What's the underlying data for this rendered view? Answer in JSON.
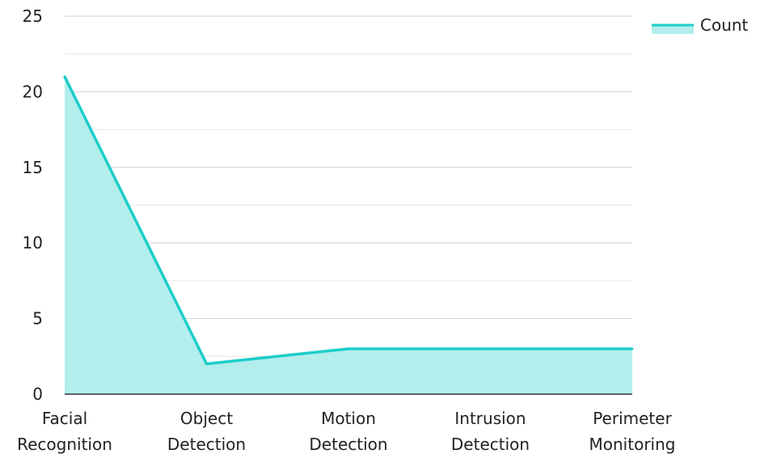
{
  "chart_data": {
    "type": "area",
    "categories": [
      [
        "Facial",
        "Recognition"
      ],
      [
        "Object",
        "Detection"
      ],
      [
        "Motion",
        "Detection"
      ],
      [
        "Intrusion",
        "Detection"
      ],
      [
        "Perimeter",
        "Monitoring"
      ]
    ],
    "series": [
      {
        "name": "Count",
        "values": [
          21,
          2,
          3,
          3,
          3
        ]
      }
    ],
    "ylim": [
      0,
      25
    ],
    "yticks": [
      0,
      5,
      10,
      15,
      20,
      25
    ],
    "grid": true,
    "legend_position": "top-right",
    "colors": {
      "line": "#1ccdc9",
      "fill": "#b3eeec",
      "grid_major": "#d0d0d0",
      "grid_minor": "#e6e6e6",
      "axis": "#333333"
    }
  },
  "legend": {
    "label": "Count"
  }
}
